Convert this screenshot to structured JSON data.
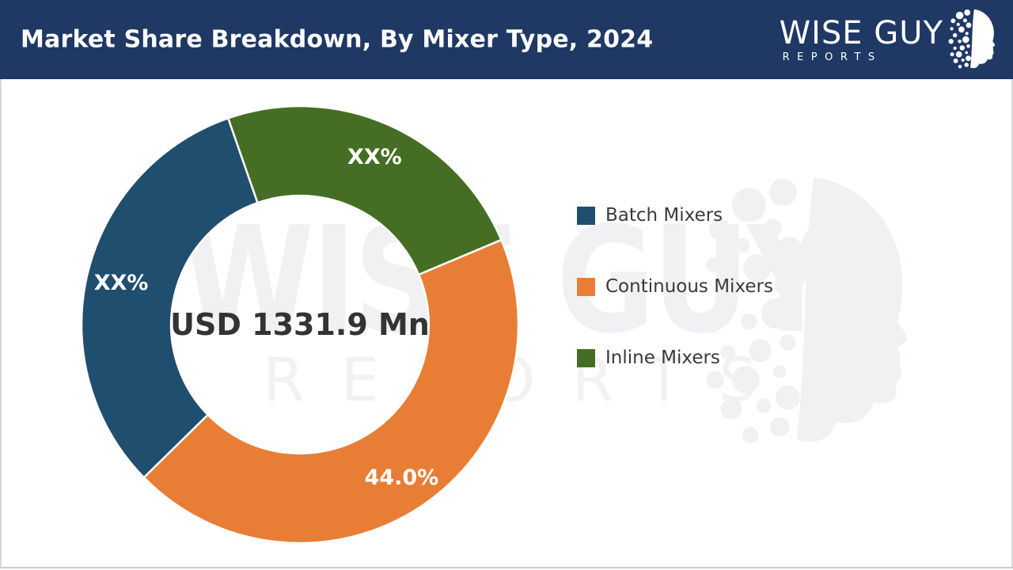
{
  "header": {
    "title": "Market Share Breakdown, By Mixer Type, 2024",
    "background": "#1f3864",
    "logo": {
      "line1": "WISE GUY",
      "line2": "REPORTS"
    }
  },
  "watermark": {
    "line1": "WISE GUY",
    "line2": "REPORTS"
  },
  "chart_data": {
    "type": "pie",
    "subtype": "donut",
    "title": "Market Share Breakdown, By Mixer Type, 2024",
    "center_label": "USD 1331.9 Mn",
    "start_angle_deg": -19.2,
    "inner_radius_ratio": 0.59,
    "legend_position": "right",
    "series": [
      {
        "name": "Inline Mixers",
        "value": 24.0,
        "label": "XX%",
        "color": "#456e24"
      },
      {
        "name": "Continuous Mixers",
        "value": 44.0,
        "label": "44.0%",
        "color": "#e87e35"
      },
      {
        "name": "Batch Mixers",
        "value": 32.0,
        "label": "XX%",
        "color": "#1f4e6e"
      }
    ],
    "legend": [
      {
        "label": "Batch Mixers",
        "color": "#1f4e6e"
      },
      {
        "label": "Continuous Mixers",
        "color": "#e87e35"
      },
      {
        "label": "Inline Mixers",
        "color": "#456e24"
      }
    ]
  }
}
